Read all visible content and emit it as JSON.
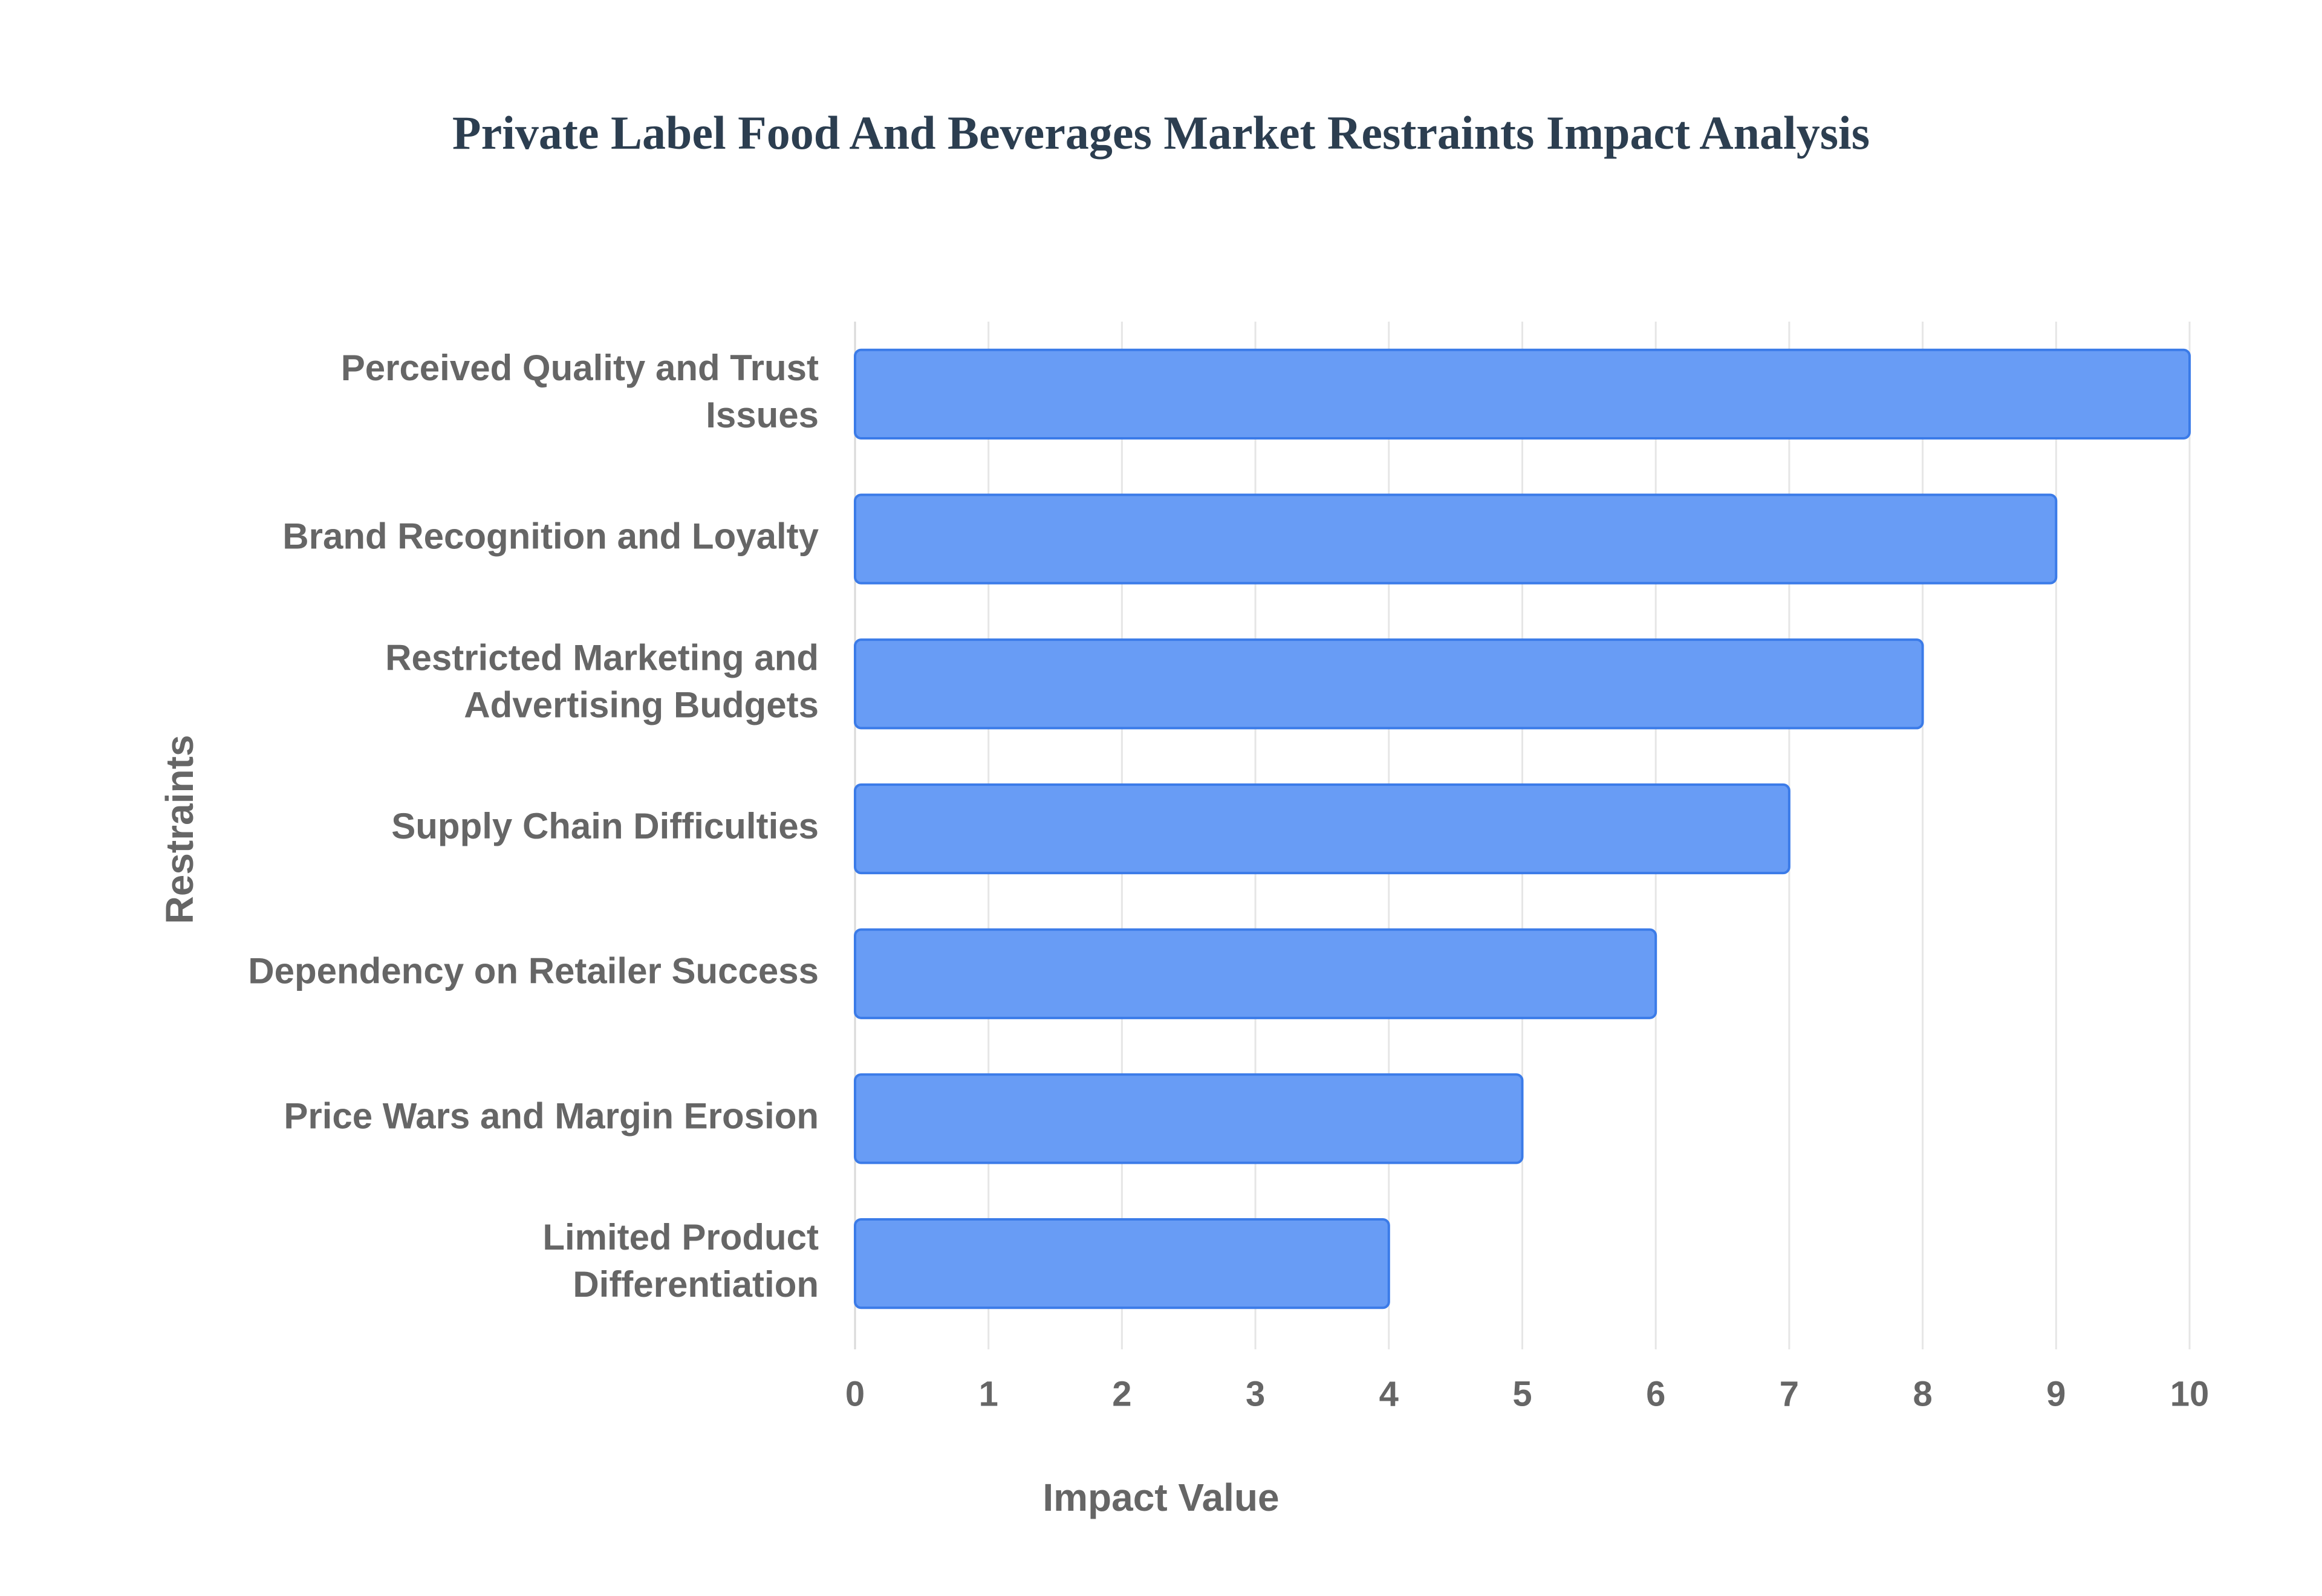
{
  "chart_data": {
    "type": "bar",
    "orientation": "horizontal",
    "title": "Private Label Food And Beverages Market Restraints Impact Analysis",
    "x_label": "Impact Value",
    "y_label": "Restraints",
    "categories": [
      "Perceived Quality and Trust Issues",
      "Brand Recognition and Loyalty",
      "Restricted Marketing and Advertising Budgets",
      "Supply Chain Difficulties",
      "Dependency on Retailer Success",
      "Price Wars and Margin Erosion",
      "Limited Product Differentiation"
    ],
    "values": [
      10,
      9,
      8,
      7,
      6,
      5,
      4
    ],
    "color": "#6399f5",
    "xlim": [
      0,
      10
    ],
    "xticks": [
      0,
      1,
      2,
      3,
      4,
      5,
      6,
      7,
      8,
      9,
      10
    ],
    "grid": true
  }
}
